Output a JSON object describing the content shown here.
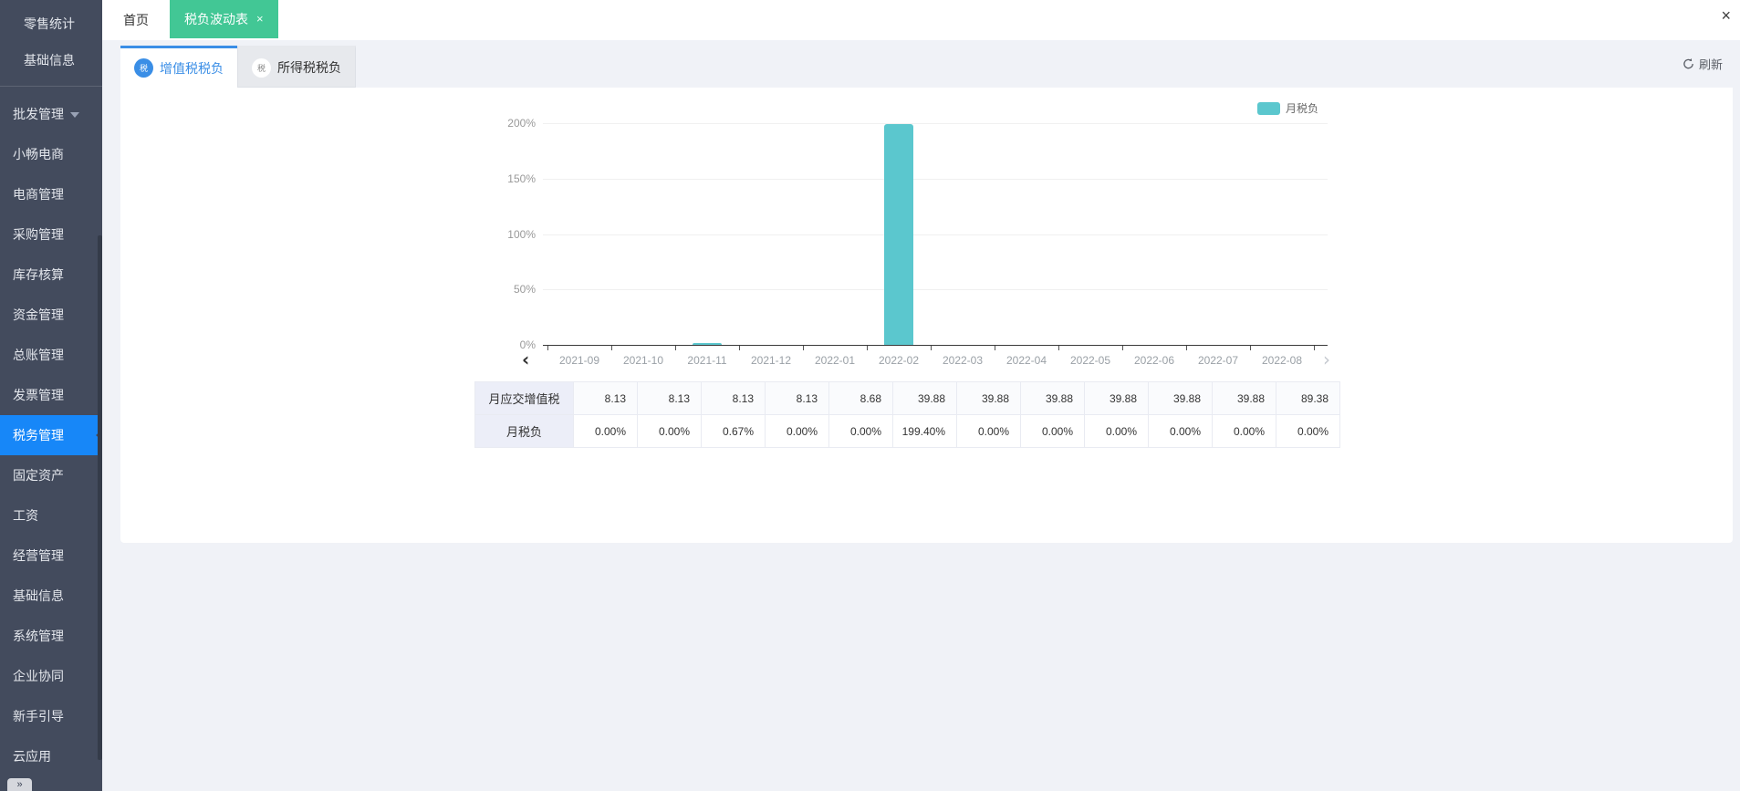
{
  "window": {
    "close_icon": "×"
  },
  "icons": {
    "prev": "‹",
    "next": "›",
    "caret": "▼",
    "collapse": "»",
    "tab_close": "×"
  },
  "tabbar": {
    "tabs": [
      {
        "label": "首页",
        "active": false
      },
      {
        "label": "税负波动表",
        "active": true,
        "closable": true
      }
    ]
  },
  "sidebar": {
    "top_items": [
      {
        "label": "零售统计"
      },
      {
        "label": "基础信息"
      }
    ],
    "items": [
      {
        "label": "批发管理",
        "caret": true
      },
      {
        "label": "小畅电商"
      },
      {
        "label": "电商管理"
      },
      {
        "label": "采购管理"
      },
      {
        "label": "库存核算"
      },
      {
        "label": "资金管理"
      },
      {
        "label": "总账管理"
      },
      {
        "label": "发票管理"
      },
      {
        "label": "税务管理",
        "active": true
      },
      {
        "label": "固定资产"
      },
      {
        "label": "工资"
      },
      {
        "label": "经营管理"
      },
      {
        "label": "基础信息"
      },
      {
        "label": "系统管理"
      },
      {
        "label": "企业协同"
      },
      {
        "label": "新手引导"
      },
      {
        "label": "云应用"
      }
    ]
  },
  "subtabs": {
    "tabs": [
      {
        "label": "增值税税负",
        "icon_text": "税",
        "active": true
      },
      {
        "label": "所得税税负",
        "icon_text": "税",
        "active": false
      }
    ],
    "refresh_label": "刷新"
  },
  "chart_data": {
    "type": "bar",
    "title": "",
    "xlabel": "",
    "ylabel": "",
    "categories": [
      "2021-09",
      "2021-10",
      "2021-11",
      "2021-12",
      "2022-01",
      "2022-02",
      "2022-03",
      "2022-04",
      "2022-05",
      "2022-06",
      "2022-07",
      "2022-08"
    ],
    "series": [
      {
        "name": "月税负",
        "unit": "%",
        "color": "#5bc7ce",
        "values": [
          0.0,
          0.0,
          0.67,
          0.0,
          0.0,
          199.4,
          0.0,
          0.0,
          0.0,
          0.0,
          0.0,
          0.0
        ]
      }
    ],
    "ylim": [
      0,
      200
    ],
    "yticks": [
      0,
      50,
      100,
      150,
      200
    ],
    "ytick_labels": [
      "0%",
      "50%",
      "100%",
      "150%",
      "200%"
    ],
    "grid": true,
    "legend_position": "top-right",
    "pagination": {
      "prev": true,
      "next": true
    }
  },
  "table": {
    "rows": [
      {
        "label": "月应交增值税",
        "values": [
          "8.13",
          "8.13",
          "8.13",
          "8.13",
          "8.68",
          "39.88",
          "39.88",
          "39.88",
          "39.88",
          "39.88",
          "39.88",
          "89.38"
        ]
      },
      {
        "label": "月税负",
        "values": [
          "0.00%",
          "0.00%",
          "0.67%",
          "0.00%",
          "0.00%",
          "199.40%",
          "0.00%",
          "0.00%",
          "0.00%",
          "0.00%",
          "0.00%",
          "0.00%"
        ]
      }
    ]
  },
  "colors": {
    "sidebar_bg": "#434b5d",
    "sidebar_active": "#1787f8",
    "tab_active_green": "#42c795",
    "subtab_accent_blue": "#3a8ee6",
    "bar_teal": "#5bc7ce",
    "page_bg": "#f0f2f7",
    "table_label_bg": "#eceef8"
  }
}
